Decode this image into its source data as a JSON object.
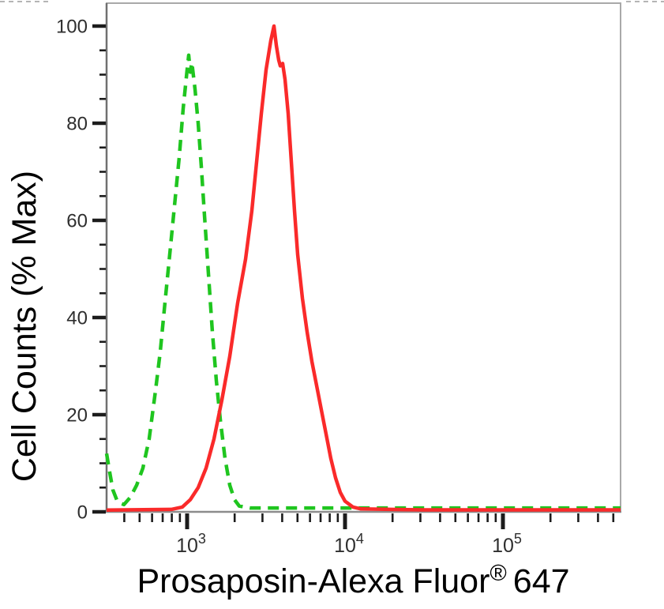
{
  "window": {
    "background": "#ffffff"
  },
  "chart_data": {
    "type": "line",
    "variant": "flow-cytometry-overlay-histogram",
    "title": "",
    "ylabel": "Cell Counts (% Max)",
    "xlabel_main": "Prosaposin-Alexa Fluor",
    "xlabel_sup": "®",
    "xlabel_suffix": "647",
    "x_scale": "log",
    "x_range": [
      309,
      569000
    ],
    "y_range": [
      0,
      100
    ],
    "grid": false,
    "legend_position": "none",
    "y_minor_step": 5,
    "y_ticks_major": [
      {
        "value": 0,
        "label": "0"
      },
      {
        "value": 20,
        "label": "20"
      },
      {
        "value": 40,
        "label": "40"
      },
      {
        "value": 60,
        "label": "60"
      },
      {
        "value": 80,
        "label": "80"
      },
      {
        "value": 100,
        "label": "100"
      }
    ],
    "x_ticks_major": [
      {
        "value": 1000,
        "base": "10",
        "exponent": "3"
      },
      {
        "value": 10000,
        "base": "10",
        "exponent": "4"
      },
      {
        "value": 100000,
        "base": "10",
        "exponent": "5"
      }
    ],
    "series": [
      {
        "id": "green-dashed",
        "line_style": "dashed",
        "color": "#1fc51f",
        "peak": {
          "x": 1023,
          "y_pct": 94
        },
        "points": [
          [
            309,
            12
          ],
          [
            324,
            8
          ],
          [
            339,
            4.5
          ],
          [
            363,
            2
          ],
          [
            398,
            1.5
          ],
          [
            437,
            3
          ],
          [
            479,
            5.5
          ],
          [
            525,
            9
          ],
          [
            575,
            15
          ],
          [
            631,
            25
          ],
          [
            676,
            33
          ],
          [
            724,
            43
          ],
          [
            776,
            53
          ],
          [
            832,
            63
          ],
          [
            891,
            73
          ],
          [
            944,
            83
          ],
          [
            1000,
            91
          ],
          [
            1023,
            94
          ],
          [
            1047,
            90.5
          ],
          [
            1072,
            92.5
          ],
          [
            1122,
            87
          ],
          [
            1175,
            80
          ],
          [
            1230,
            71
          ],
          [
            1288,
            61
          ],
          [
            1365,
            49
          ],
          [
            1445,
            37
          ],
          [
            1531,
            27
          ],
          [
            1622,
            19
          ],
          [
            1738,
            11
          ],
          [
            1862,
            5.5
          ],
          [
            1995,
            2.5
          ],
          [
            2138,
            1.2
          ],
          [
            2512,
            0.8
          ],
          [
            10000,
            0.8
          ],
          [
            100000,
            0.8
          ],
          [
            560000,
            0.8
          ]
        ]
      },
      {
        "id": "red-solid",
        "line_style": "solid",
        "color": "#fa2a2a",
        "peak": {
          "x": 3548,
          "y_pct": 100
        },
        "points": [
          [
            309,
            0.35
          ],
          [
            794,
            0.5
          ],
          [
            933,
            1
          ],
          [
            1047,
            2.5
          ],
          [
            1175,
            5
          ],
          [
            1318,
            9
          ],
          [
            1479,
            15
          ],
          [
            1660,
            23
          ],
          [
            1862,
            32
          ],
          [
            2089,
            43
          ],
          [
            2344,
            52
          ],
          [
            2570,
            62
          ],
          [
            2754,
            72
          ],
          [
            2951,
            82
          ],
          [
            3162,
            91
          ],
          [
            3388,
            97
          ],
          [
            3548,
            100
          ],
          [
            3673,
            96
          ],
          [
            3802,
            93
          ],
          [
            3890,
            91.8
          ],
          [
            4027,
            92.3
          ],
          [
            4169,
            89
          ],
          [
            4365,
            82
          ],
          [
            4571,
            72
          ],
          [
            4786,
            62
          ],
          [
            5012,
            53
          ],
          [
            5370,
            44
          ],
          [
            5754,
            37
          ],
          [
            6166,
            31
          ],
          [
            6607,
            26
          ],
          [
            7079,
            21
          ],
          [
            7586,
            16
          ],
          [
            8128,
            11
          ],
          [
            8710,
            7
          ],
          [
            9333,
            4
          ],
          [
            10000,
            2.2
          ],
          [
            11220,
            1
          ],
          [
            12589,
            0.6
          ],
          [
            31623,
            0.4
          ],
          [
            100000,
            0.4
          ],
          [
            569000,
            0.4
          ]
        ]
      }
    ]
  },
  "colors": {
    "axis_ticks": "#1c1c1c",
    "frame": "#a9a9a9",
    "y_axis_line": "#707070",
    "baseline": "#8c8c8c",
    "tick_label": "#2e2e2e",
    "title_text": "#000000",
    "crop_mark": "#b5b5b5"
  }
}
